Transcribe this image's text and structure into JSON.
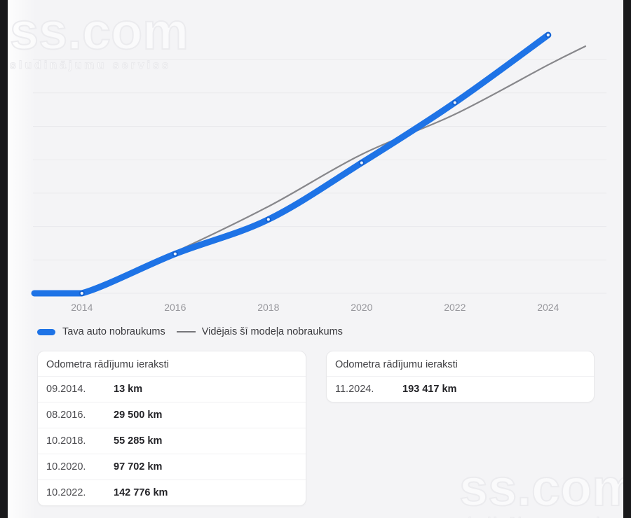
{
  "watermark": {
    "brand": "ss.com",
    "tagline": "sludinājumu serviss"
  },
  "chart_data": {
    "type": "line",
    "title": "",
    "xlabel": "",
    "ylabel": "",
    "unit": "km",
    "x": [
      2014,
      2016,
      2018,
      2020,
      2022,
      2024
    ],
    "x_tick_labels": [
      "2014",
      "2016",
      "2018",
      "2020",
      "2022",
      "2024"
    ],
    "xlim": [
      2012.95,
      2025.07
    ],
    "ylim": [
      0,
      200000
    ],
    "grid_step": 25000,
    "grid": "horizontal",
    "legend_position": "bottom",
    "series": [
      {
        "name": "Tava auto nobraukums",
        "color": "#1e73e6",
        "marker": "ring",
        "lead_in_flat": true,
        "values": [
          13,
          29500,
          55285,
          97702,
          142776,
          193417
        ]
      },
      {
        "name": "Vidējais šī modeļa nobraukums",
        "color": "#87878b",
        "marker": "none",
        "estimated": true,
        "values": [
          500,
          31000,
          65000,
          104000,
          134000,
          171000
        ],
        "extension_point": {
          "x": 2024.8,
          "value": 185000
        }
      }
    ]
  },
  "legend": {
    "items": [
      {
        "label": "Tava auto nobraukums",
        "swatch": "pill",
        "color": "#1e73e6"
      },
      {
        "label": "Vidējais šī modeļa nobraukums",
        "swatch": "line",
        "color": "#76767a"
      }
    ]
  },
  "cards": [
    {
      "title": "Odometra rādījumu ieraksti",
      "rows": [
        {
          "date": "09.2014.",
          "value": "13 km"
        },
        {
          "date": "08.2016.",
          "value": "29 500 km"
        },
        {
          "date": "10.2018.",
          "value": "55 285 km"
        },
        {
          "date": "10.2020.",
          "value": "97 702 km"
        },
        {
          "date": "10.2022.",
          "value": "142 776 km"
        }
      ]
    },
    {
      "title": "Odometra rādījumu ieraksti",
      "rows": [
        {
          "date": "11.2024.",
          "value": "193 417 km"
        }
      ]
    }
  ],
  "colors": {
    "accent_blue": "#1e73e6",
    "marker_ring": "#1360cf",
    "average_line": "#87878b",
    "gridline": "#e9e9ec",
    "background": "#f4f4f6",
    "card_background": "#ffffff",
    "side_bars": "#19191b"
  }
}
